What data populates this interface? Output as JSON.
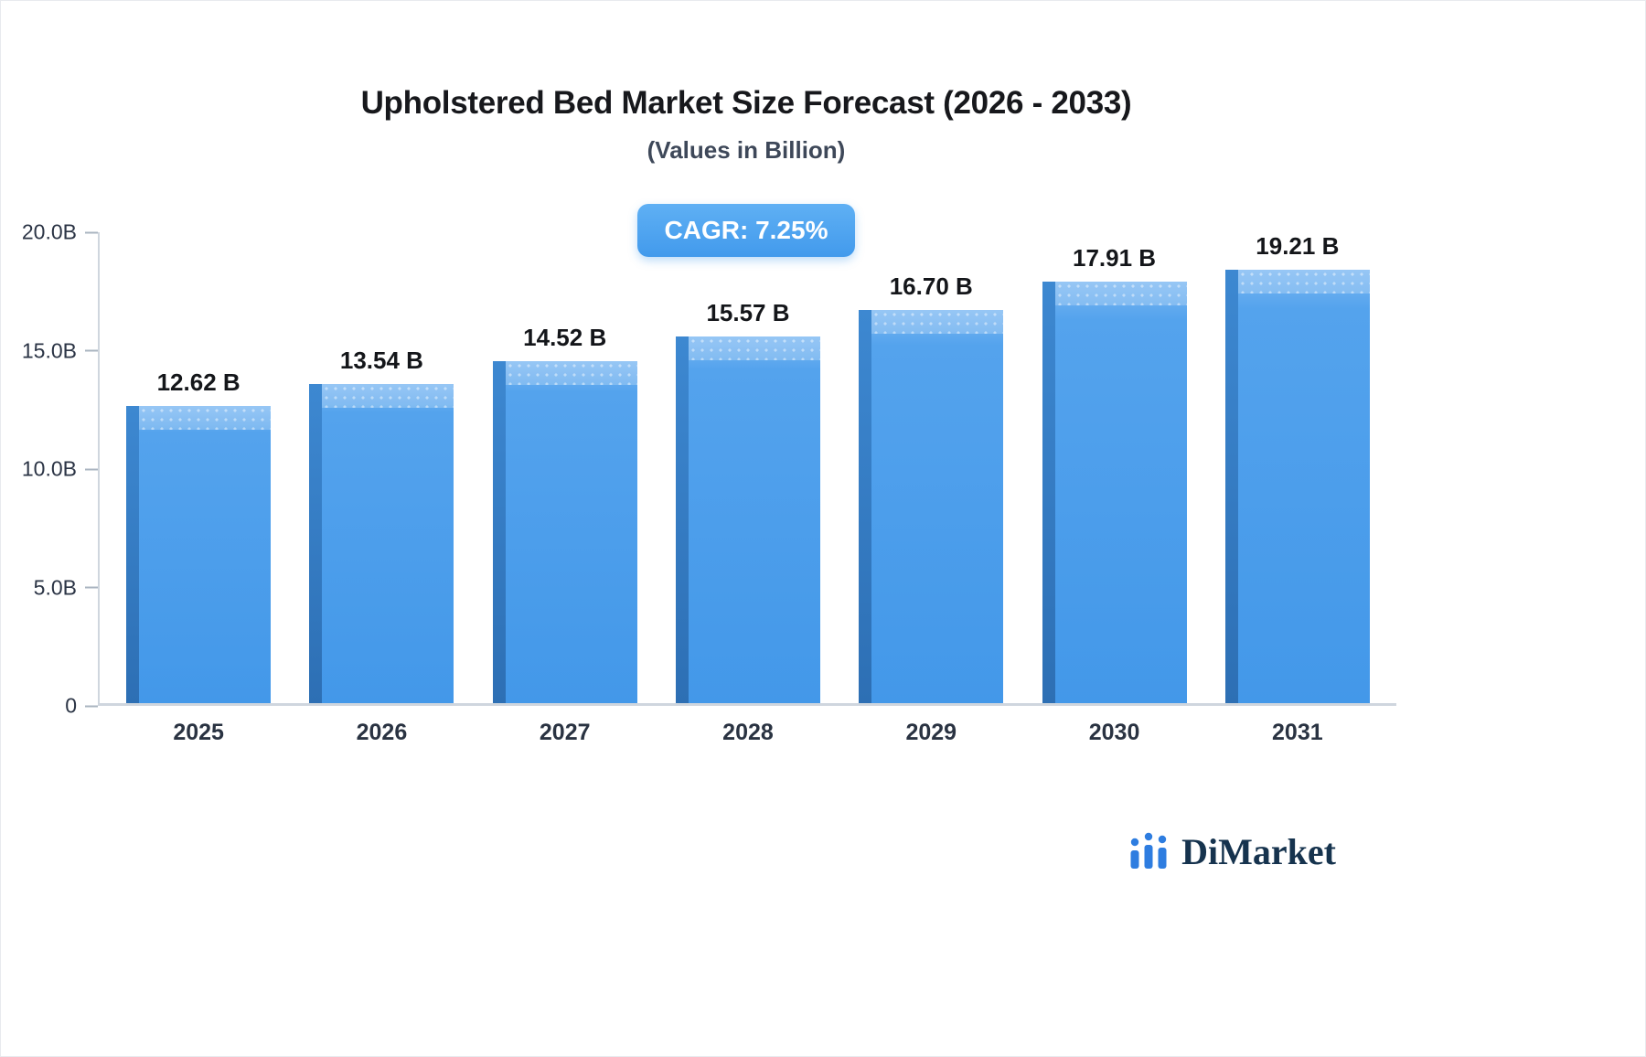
{
  "header": {
    "title": "Upholstered Bed Market Size Forecast (2026 - 2033)",
    "subtitle": "(Values in Billion)"
  },
  "badge": {
    "label": "CAGR: 7.25%"
  },
  "logo": {
    "text": "DiMarket",
    "icon": "bar-chart-icon",
    "accent_color": "#2e7de0",
    "text_color": "#16334e"
  },
  "colors": {
    "bar_face": "#4398e9",
    "bar_side": "#2d6fb4",
    "badge_bg": "#429aec",
    "axis_line": "#cfd6de",
    "label_text": "#14161a"
  },
  "chart_data": {
    "type": "bar",
    "title": "Upholstered Bed Market Size Forecast (2026 - 2033)",
    "subtitle": "(Values in Billion)",
    "annotation": "CAGR: 7.25%",
    "categories": [
      "2025",
      "2026",
      "2027",
      "2028",
      "2029",
      "2030",
      "2031"
    ],
    "values": [
      12.62,
      13.54,
      14.52,
      15.57,
      16.7,
      17.91,
      19.21
    ],
    "value_labels": [
      "12.62 B",
      "13.54 B",
      "14.52 B",
      "15.57 B",
      "16.70 B",
      "17.91 B",
      "19.21 B"
    ],
    "xlabel": "",
    "ylabel": "",
    "ylim": [
      0,
      20
    ],
    "yticks": [
      {
        "label": "20.0B",
        "value": 20
      },
      {
        "label": "15.0B",
        "value": 15
      },
      {
        "label": "10.0B",
        "value": 10
      },
      {
        "label": "5.0B",
        "value": 5
      },
      {
        "label": "0",
        "value": 0
      }
    ],
    "grid": false,
    "legend": false,
    "legend_position": "none"
  }
}
